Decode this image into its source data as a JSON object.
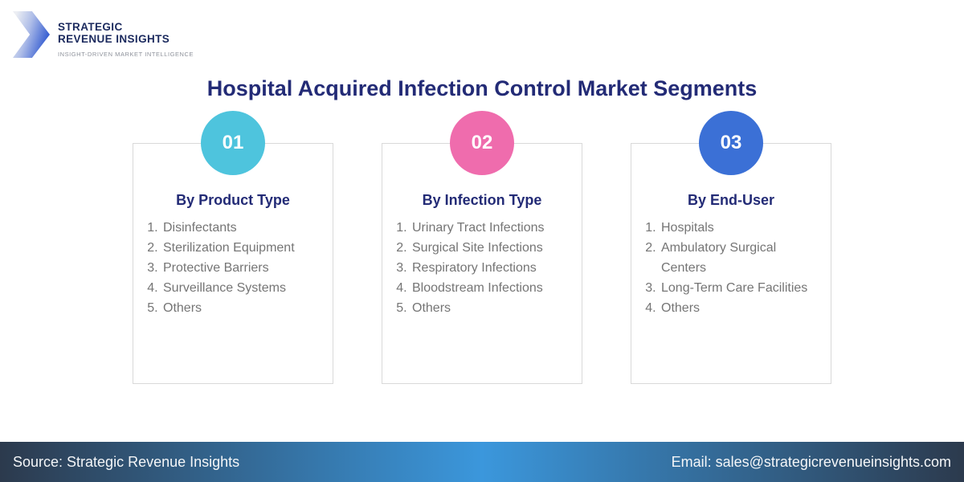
{
  "brand": {
    "name_line1": "STRATEGIC",
    "name_line2": "REVENUE INSIGHTS",
    "tagline": "INSIGHT-DRIVEN MARKET INTELLIGENCE"
  },
  "title": "Hospital Acquired Infection Control Market Segments",
  "colors": {
    "title_navy": "#232b76",
    "list_gray": "#757575",
    "footer_dark": "#2c3a4d",
    "footer_blue": "#3b97dc",
    "logo_navy": "#1b2a5e"
  },
  "segments": [
    {
      "number": "01",
      "color": "#4ec4dd",
      "title": "By Product Type",
      "items": [
        "Disinfectants",
        "Sterilization Equipment",
        "Protective Barriers",
        "Surveillance Systems",
        "Others"
      ]
    },
    {
      "number": "02",
      "color": "#ef6cad",
      "title": "By Infection Type",
      "items": [
        "Urinary Tract Infections",
        "Surgical Site Infections",
        "Respiratory Infections",
        "Bloodstream Infections",
        "Others"
      ]
    },
    {
      "number": "03",
      "color": "#3b70d6",
      "title": "By End-User",
      "items": [
        "Hospitals",
        "Ambulatory Surgical Centers",
        "Long-Term Care Facilities",
        "Others"
      ]
    }
  ],
  "footer": {
    "source": "Source: Strategic Revenue Insights",
    "email": "Email: sales@strategicrevenueinsights.com"
  }
}
